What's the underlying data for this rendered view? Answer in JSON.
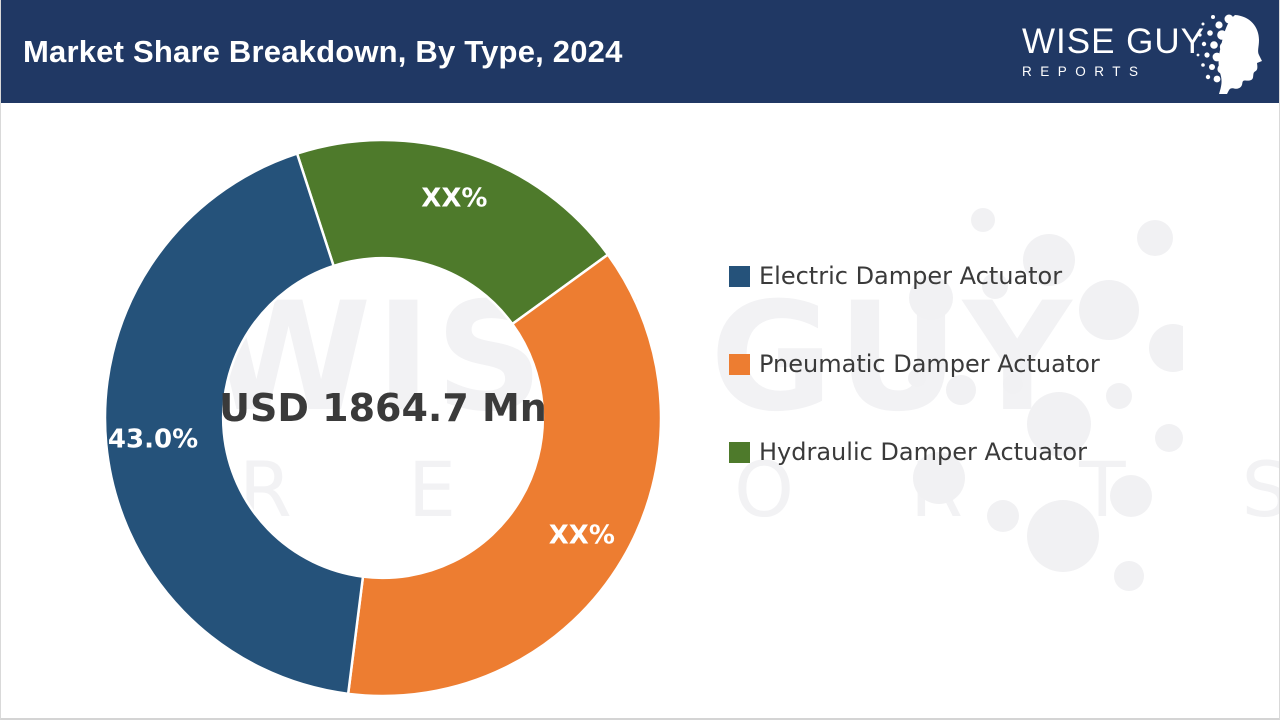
{
  "header": {
    "title": "Market Share Breakdown, By Type, 2024"
  },
  "logo": {
    "wordmark": "WISE GUY",
    "subtext": "REPORTS",
    "face_icon": "dotted-head-profile"
  },
  "watermark": {
    "line1": "WISE GUY",
    "line2": "R E P O R T S"
  },
  "chart_data": {
    "type": "donut",
    "title": "Market Share Breakdown, By Type, 2024",
    "center_label": "USD 1864.7 Mn",
    "start_angle_deg": -18,
    "inner_radius_ratio": 0.575,
    "legend_position": "right",
    "segments": [
      {
        "name": "Hydraulic Damper Actuator",
        "label": "XX%",
        "value": 20,
        "color": "#4e7a2b"
      },
      {
        "name": "Pneumatic Damper Actuator",
        "label": "XX%",
        "value": 37,
        "color": "#ed7d31"
      },
      {
        "name": "Electric Damper Actuator",
        "label": "43.0%",
        "value": 43,
        "color": "#25527a"
      }
    ],
    "legend_order": [
      2,
      1,
      0
    ]
  }
}
